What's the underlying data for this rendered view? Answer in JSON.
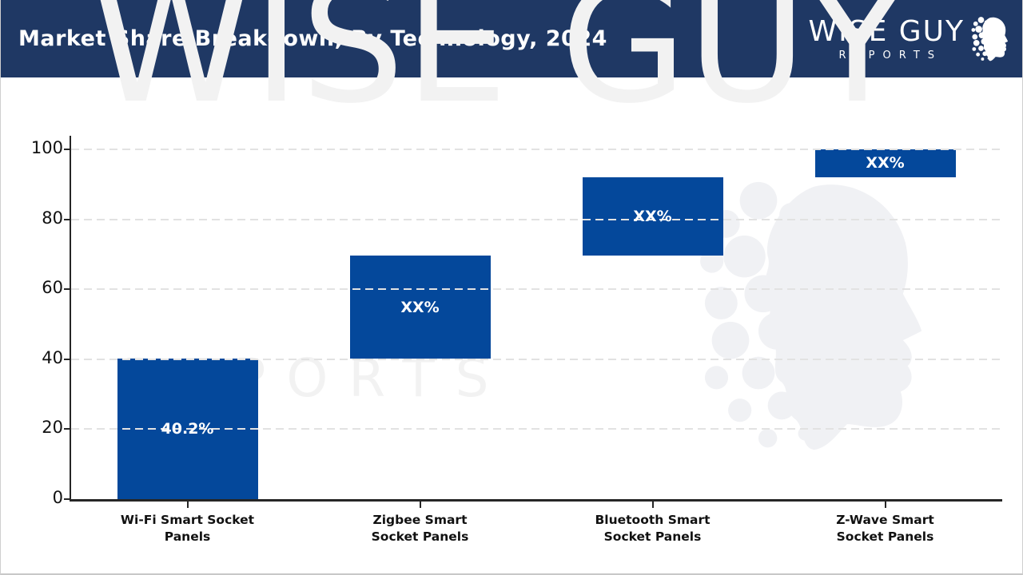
{
  "header": {
    "title": "Market Share Breakdown, By Technology, 2024",
    "logo": {
      "name": "WISE GUY",
      "sub": "REPORTS"
    }
  },
  "watermark": {
    "line1": "WISE GUY",
    "line2": "REPORTS"
  },
  "chart_data": {
    "type": "bar",
    "variant": "waterfall",
    "title": "Market Share Breakdown, By Technology, 2024",
    "categories": [
      "Wi-Fi Smart Socket\nPanels",
      "Zigbee Smart\nSocket Panels",
      "Bluetooth Smart\nSocket Panels",
      "Z-Wave Smart\nSocket Panels"
    ],
    "segments": [
      {
        "category": "Wi-Fi Smart Socket Panels",
        "start": 0,
        "end": 40.2,
        "label": "40.2%"
      },
      {
        "category": "Zigbee Smart Socket Panels",
        "start": 40.2,
        "end": 69.6,
        "label": "XX%"
      },
      {
        "category": "Bluetooth Smart Socket Panels",
        "start": 69.6,
        "end": 92.1,
        "label": "XX%"
      },
      {
        "category": "Z-Wave Smart Socket Panels",
        "start": 92.1,
        "end": 100,
        "label": "XX%"
      }
    ],
    "yticks": [
      0,
      20,
      40,
      60,
      80,
      100
    ],
    "ylim": [
      0,
      104
    ],
    "xlabel": "",
    "ylabel": "",
    "grid": "horizontal-dashed",
    "legend": "none",
    "colors": {
      "bar": "#04489b",
      "header_bg": "#1f3864",
      "grid": "#e2e2e2",
      "axis": "#262626",
      "bar_label": "#ffffff",
      "tick_label": "#111111",
      "watermark": "#f2f2f2"
    }
  }
}
